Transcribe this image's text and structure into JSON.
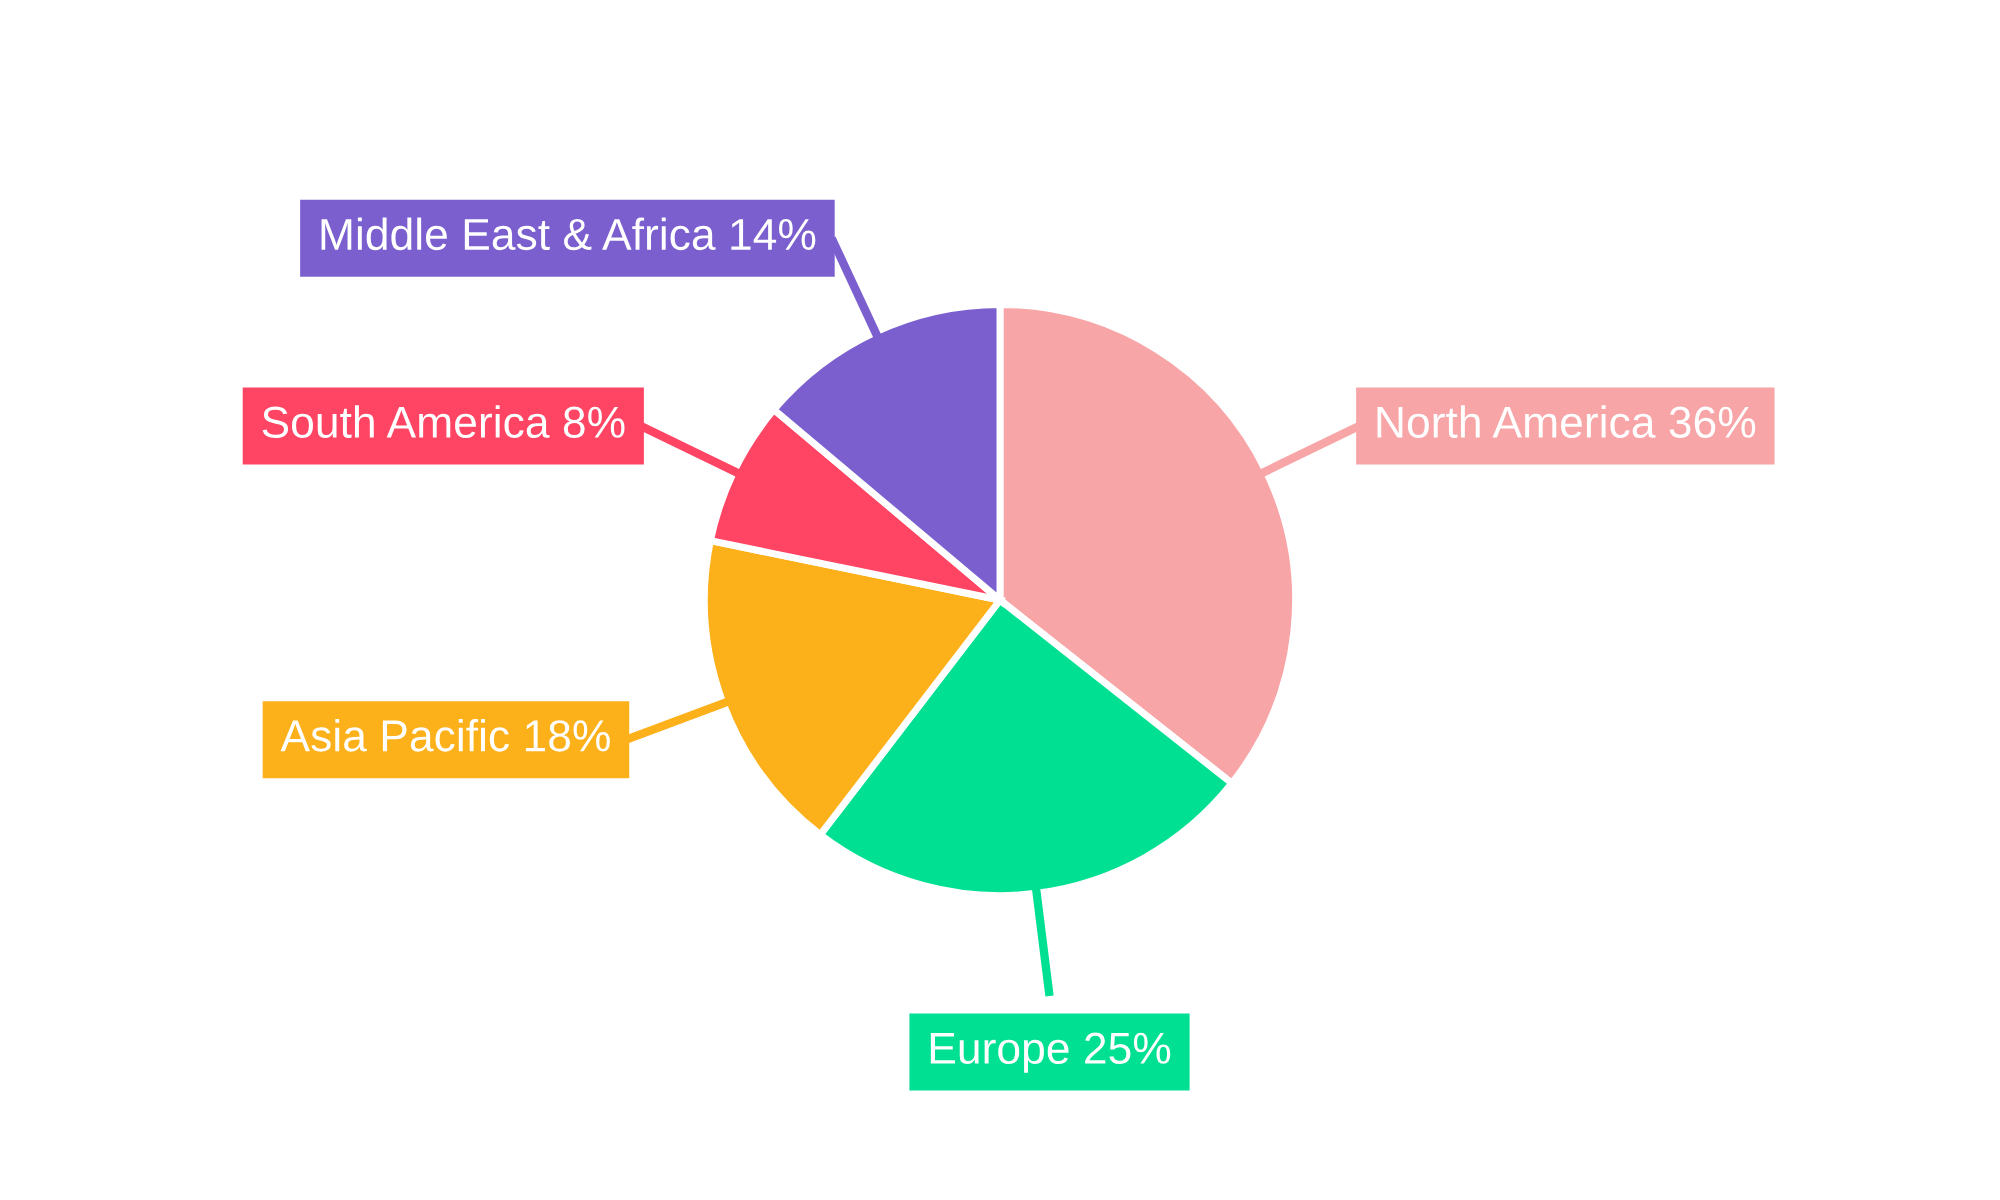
{
  "chart_data": {
    "type": "pie",
    "categories": [
      "North America",
      "Europe",
      "Asia Pacific",
      "South America",
      "Middle East & Africa"
    ],
    "values": [
      36,
      25,
      18,
      8,
      14
    ],
    "colors": [
      "#f8a5a7",
      "#00e092",
      "#fcb01a",
      "#ff4563",
      "#7b5fcf"
    ],
    "value_labels": [
      "36%",
      "25%",
      "18%",
      "8%",
      "14%"
    ],
    "legend": false
  }
}
